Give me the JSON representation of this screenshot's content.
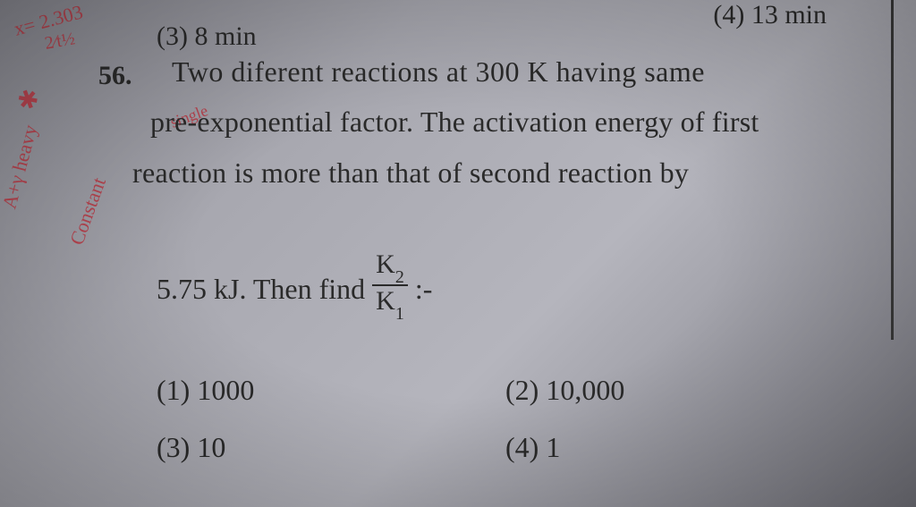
{
  "partial_top": "(4) 13 min",
  "prev_option": "(3) 8 min",
  "question_number": "56.",
  "question_line1": "Two diferent reactions at 300 K having same",
  "question_line2": "pre-exponential factor. The activation energy of first",
  "question_line3": "reaction is more than that of second reaction by",
  "question_line4_prefix": "5.75 kJ. Then find",
  "question_line4_suffix": ":-",
  "fraction_numerator": "K",
  "fraction_num_sub": "2",
  "fraction_denominator": "K",
  "fraction_den_sub": "1",
  "options": {
    "opt1": "(1) 1000",
    "opt2": "(2) 10,000",
    "opt3": "(3) 10",
    "opt4": "(4) 1"
  },
  "handwriting": {
    "top1": "x= 2.303",
    "top2": "2⁄t½",
    "side": "A+γ heavy",
    "side2": "Constant",
    "small": "single",
    "mark": "✱"
  },
  "colors": {
    "text": "#2a2a2a",
    "handwriting": "#b84550",
    "bg_light": "#b5b5bd",
    "bg_dark": "#787880"
  }
}
